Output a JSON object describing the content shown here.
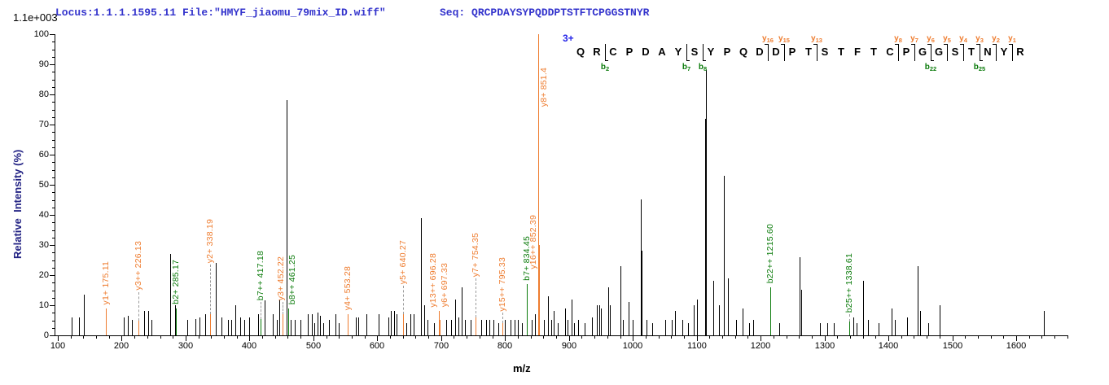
{
  "header": {
    "locus_text": "Locus:1.1.1.1595.11 File:\"HMYF_jiaomu_79mix_ID.wiff\"",
    "seq_label": "Seq: ",
    "seq_value": "QRCPDAYSYPQDDPTSTFTCPGGSTNYR",
    "max_intensity": "1.1e+003"
  },
  "axes": {
    "ylabel": "Relative  Intensity (%)",
    "xlabel": "m/z",
    "x_tick_major": [
      100,
      200,
      300,
      400,
      500,
      600,
      700,
      800,
      900,
      1000,
      1100,
      1200,
      1300,
      1400,
      1500,
      1600
    ],
    "x_minor_step": 20,
    "x_min": 100,
    "x_max": 1680,
    "y_tick_major": [
      0,
      10,
      20,
      30,
      40,
      50,
      60,
      70,
      80,
      90,
      100
    ],
    "y_minor_step": 2.5
  },
  "sequence": {
    "charge": "3+",
    "residues": "QRCPDAYSYPQDDPTSTFTCPGGSTNYR",
    "y_markers": [
      {
        "n": 16,
        "gap": 12
      },
      {
        "n": 15,
        "gap": 13
      },
      {
        "n": 13,
        "gap": 15
      },
      {
        "n": 8,
        "gap": 20
      },
      {
        "n": 7,
        "gap": 21
      },
      {
        "n": 6,
        "gap": 22
      },
      {
        "n": 5,
        "gap": 23
      },
      {
        "n": 4,
        "gap": 24
      },
      {
        "n": 3,
        "gap": 25
      },
      {
        "n": 2,
        "gap": 26
      },
      {
        "n": 1,
        "gap": 27
      }
    ],
    "b_markers": [
      {
        "n": 2,
        "gap": 2
      },
      {
        "n": 7,
        "gap": 7
      },
      {
        "n": 8,
        "gap": 8
      },
      {
        "n": 22,
        "gap": 22
      },
      {
        "n": 25,
        "gap": 25
      }
    ]
  },
  "colors": {
    "title_blue": "#3333cc",
    "y_ion_orange": "#ee7c2f",
    "b_ion_green": "#0b7b0b",
    "peak_black": "#000000",
    "ylabel_navy": "#232384",
    "dash_grey": "#9b9b9b"
  },
  "chart_data": {
    "type": "bar",
    "subtype": "ms2-fragment-spectrum",
    "title": "Locus:1.1.1.1595.11 File:\"HMYF_jiaomu_79mix_ID.wiff\" Seq: QRCPDAYSYPQDDPTSTFTCPGGSTNYR",
    "xlabel": "m/z",
    "ylabel": "Relative  Intensity (%)",
    "xlim": [
      100,
      1680
    ],
    "ylim": [
      0,
      100
    ],
    "base_peak_intensity": "1.1e+003",
    "peaks_labeled": [
      {
        "mz": 175.11,
        "pct": 9,
        "ion": "y",
        "label": "y1+ 175.11"
      },
      {
        "mz": 226.13,
        "pct": 5,
        "ion": "y",
        "label": "y3++ 226.13",
        "label_pct": 15,
        "dashed": 1
      },
      {
        "mz": 285.17,
        "pct": 9,
        "ion": "b",
        "label": "b2+ 285.17"
      },
      {
        "mz": 338.19,
        "pct": 7,
        "ion": "y",
        "label": "y2+ 338.19",
        "label_pct": 24,
        "dashed": 1
      },
      {
        "mz": 417.18,
        "pct": 5.5,
        "ion": "b",
        "label": "b7++ 417.18",
        "label_pct": 11.5,
        "dashed": 1
      },
      {
        "mz": 452.22,
        "pct": 7,
        "ion": "y",
        "label": "y3+ 452.22",
        "label_pct": 11.5,
        "dashed": 1,
        "dx": -2
      },
      {
        "mz": 461.25,
        "pct": 9,
        "ion": "b",
        "label": "b8++ 461.25",
        "dx": 5
      },
      {
        "mz": 553.28,
        "pct": 7,
        "ion": "y",
        "label": "y4+ 553.28"
      },
      {
        "mz": 640.27,
        "pct": 7,
        "ion": "y",
        "label": "y5+ 640.27",
        "label_pct": 17,
        "dashed": 1
      },
      {
        "mz": 696.28,
        "pct": 8,
        "ion": "y",
        "label": "y13++ 696.28",
        "dx": -7
      },
      {
        "mz": 697.33,
        "pct": 5,
        "ion": "y",
        "label": "y6+ 697.33",
        "label_pct": 9.5,
        "dx": 6
      },
      {
        "mz": 754.35,
        "pct": 6,
        "ion": "y",
        "label": "y7+ 754.35",
        "label_pct": 19.5,
        "dashed": 1
      },
      {
        "mz": 795.33,
        "pct": 4,
        "ion": "y",
        "label": "y15++ 795.33",
        "label_pct": 8,
        "dashed": 1
      },
      {
        "mz": 834.45,
        "pct": 17,
        "ion": "b",
        "label": "b7+ 834.45"
      },
      {
        "mz": 851.4,
        "pct": 100,
        "ion": "y",
        "label": "y8+ 851.4",
        "label_pct": 76,
        "dx": 7
      },
      {
        "mz": 852.39,
        "pct": 30,
        "ion": "y",
        "label": "y16++ 852.39",
        "label_pct": 22,
        "dx": -6,
        "w": 2
      },
      {
        "mz": 1215.6,
        "pct": 16,
        "ion": "b",
        "label": "b22++ 1215.60"
      },
      {
        "mz": 1338.61,
        "pct": 4.5,
        "ion": "b",
        "label": "b25++ 1338.61",
        "label_pct": 7.5,
        "dashed": 1
      }
    ],
    "peaks_unlabeled": [
      [
        122,
        6
      ],
      [
        133,
        6
      ],
      [
        141,
        13.5
      ],
      [
        203,
        6
      ],
      [
        210,
        6.5
      ],
      [
        216,
        5
      ],
      [
        235,
        8
      ],
      [
        241,
        8
      ],
      [
        247,
        5
      ],
      [
        276,
        27
      ],
      [
        284,
        10
      ],
      [
        303,
        5
      ],
      [
        315,
        5.5
      ],
      [
        322,
        6
      ],
      [
        331,
        7
      ],
      [
        347,
        24
      ],
      [
        356,
        6
      ],
      [
        366,
        5
      ],
      [
        371,
        5
      ],
      [
        378,
        10
      ],
      [
        385,
        6
      ],
      [
        392,
        5
      ],
      [
        400,
        6
      ],
      [
        413,
        7
      ],
      [
        424,
        11.5
      ],
      [
        436,
        7
      ],
      [
        443,
        5
      ],
      [
        447,
        12
      ],
      [
        458,
        78
      ],
      [
        464,
        5
      ],
      [
        471,
        5
      ],
      [
        480,
        5
      ],
      [
        491,
        7
      ],
      [
        497,
        7
      ],
      [
        501,
        4
      ],
      [
        506,
        7.5
      ],
      [
        511,
        6.5
      ],
      [
        516,
        4
      ],
      [
        525,
        5
      ],
      [
        534,
        7
      ],
      [
        540,
        4
      ],
      [
        566,
        6
      ],
      [
        570,
        6
      ],
      [
        583,
        7
      ],
      [
        602,
        7
      ],
      [
        618,
        6
      ],
      [
        621,
        8
      ],
      [
        626,
        8
      ],
      [
        630,
        7
      ],
      [
        646,
        4
      ],
      [
        652,
        7
      ],
      [
        657,
        7
      ],
      [
        668,
        39
      ],
      [
        673,
        10
      ],
      [
        678,
        5
      ],
      [
        689,
        4
      ],
      [
        708,
        5
      ],
      [
        715,
        5
      ],
      [
        722,
        12
      ],
      [
        727,
        6
      ],
      [
        732,
        16
      ],
      [
        737,
        5
      ],
      [
        746,
        5
      ],
      [
        763,
        5
      ],
      [
        770,
        5
      ],
      [
        776,
        5
      ],
      [
        782,
        5
      ],
      [
        789,
        4
      ],
      [
        800,
        5
      ],
      [
        809,
        5
      ],
      [
        815,
        5
      ],
      [
        820,
        5
      ],
      [
        826,
        4
      ],
      [
        842,
        5
      ],
      [
        847,
        7
      ],
      [
        861,
        5
      ],
      [
        867,
        13
      ],
      [
        872,
        5
      ],
      [
        876,
        8
      ],
      [
        883,
        4
      ],
      [
        894,
        9
      ],
      [
        898,
        5
      ],
      [
        904,
        12
      ],
      [
        908,
        4
      ],
      [
        914,
        5
      ],
      [
        924,
        4
      ],
      [
        936,
        6
      ],
      [
        944,
        10
      ],
      [
        947,
        10
      ],
      [
        950,
        9
      ],
      [
        962,
        16
      ],
      [
        964,
        10
      ],
      [
        980,
        23
      ],
      [
        985,
        5
      ],
      [
        993,
        11
      ],
      [
        1000,
        5
      ],
      [
        1012,
        45
      ],
      [
        1014,
        28
      ],
      [
        1022,
        5
      ],
      [
        1030,
        4
      ],
      [
        1051,
        5
      ],
      [
        1061,
        5
      ],
      [
        1066,
        8
      ],
      [
        1077,
        5
      ],
      [
        1087,
        4
      ],
      [
        1095,
        10
      ],
      [
        1101,
        12
      ],
      [
        1113,
        72
      ],
      [
        1115,
        88
      ],
      [
        1126,
        18
      ],
      [
        1135,
        10
      ],
      [
        1142,
        53
      ],
      [
        1149,
        19
      ],
      [
        1161,
        5
      ],
      [
        1172,
        9
      ],
      [
        1182,
        4
      ],
      [
        1188,
        5
      ],
      [
        1229,
        4
      ],
      [
        1261,
        26
      ],
      [
        1263,
        15
      ],
      [
        1293,
        4
      ],
      [
        1304,
        4
      ],
      [
        1315,
        4
      ],
      [
        1345,
        6
      ],
      [
        1350,
        4
      ],
      [
        1360,
        18
      ],
      [
        1368,
        5
      ],
      [
        1385,
        4
      ],
      [
        1405,
        9
      ],
      [
        1410,
        5
      ],
      [
        1429,
        6
      ],
      [
        1446,
        23
      ],
      [
        1450,
        8
      ],
      [
        1462,
        4
      ],
      [
        1480,
        10
      ],
      [
        1643,
        8
      ]
    ]
  }
}
